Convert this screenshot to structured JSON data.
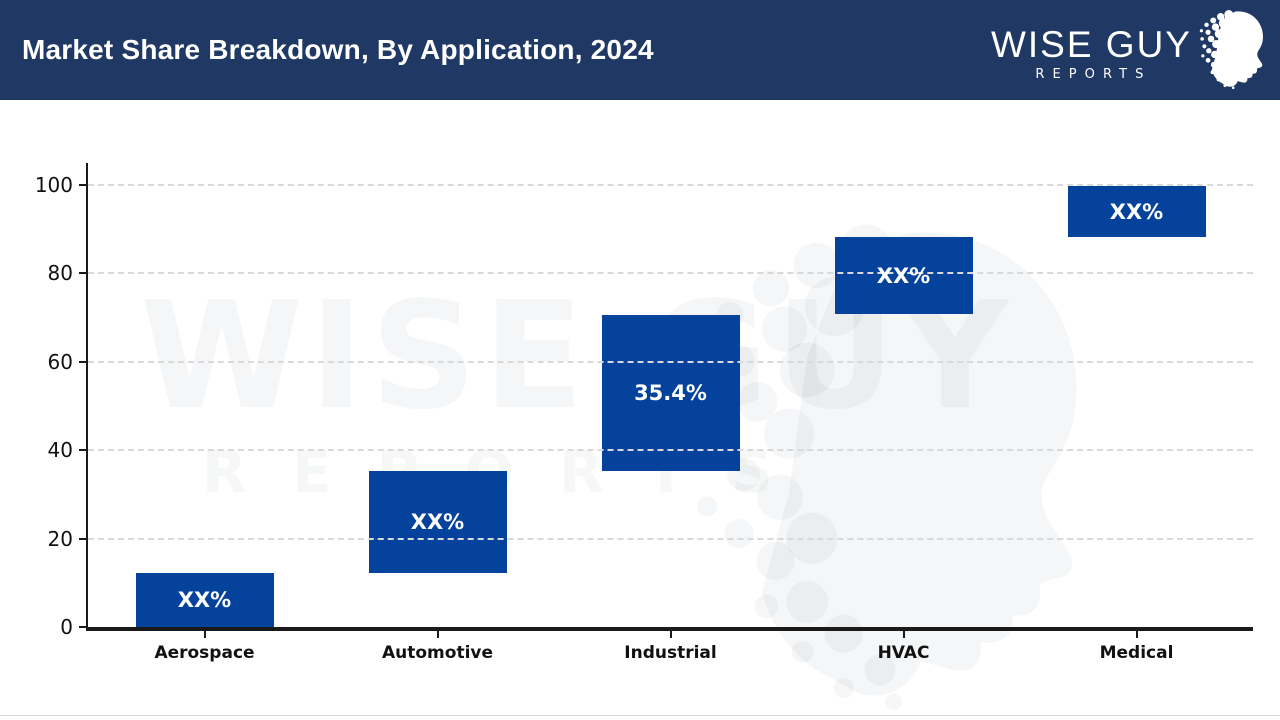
{
  "header": {
    "title": "Market Share Breakdown, By Application, 2024",
    "logo": {
      "primary": "WISE GUY",
      "secondary": "REPORTS"
    }
  },
  "watermark": {
    "primary": "WISE GUY",
    "secondary": "REPORTS"
  },
  "chart_data": {
    "type": "bar",
    "subtype": "floating-waterfall",
    "title": "Market Share Breakdown, By Application, 2024",
    "categories": [
      "Aerospace",
      "Automotive",
      "Industrial",
      "HVAC",
      "Medical"
    ],
    "series": [
      {
        "name": "Market Share",
        "segments": [
          {
            "category": "Aerospace",
            "start": 0,
            "end": 12.2,
            "label": "XX%"
          },
          {
            "category": "Automotive",
            "start": 12.2,
            "end": 35.3,
            "label": "XX%"
          },
          {
            "category": "Industrial",
            "start": 35.3,
            "end": 70.7,
            "label": "35.4%"
          },
          {
            "category": "HVAC",
            "start": 70.7,
            "end": 88.2,
            "label": "XX%"
          },
          {
            "category": "Medical",
            "start": 88.2,
            "end": 99.8,
            "label": "XX%"
          }
        ]
      }
    ],
    "xlabel": "",
    "ylabel": "",
    "y_ticks": [
      0,
      20,
      40,
      60,
      80,
      100
    ],
    "ylim": [
      0,
      105
    ],
    "grid": "horizontal-dashed",
    "legend": "none",
    "bar_color": "#04429c",
    "bar_label_color": "#ffffff",
    "grid_color": "#d9d9d9",
    "axis_color": "#1a1a1a"
  },
  "colors": {
    "header_bg": "#1f3864",
    "bar": "#04429c",
    "grid": "#d9d9d9",
    "axis": "#1a1a1a",
    "text": "#111111",
    "logo_text": "#ffffff"
  }
}
